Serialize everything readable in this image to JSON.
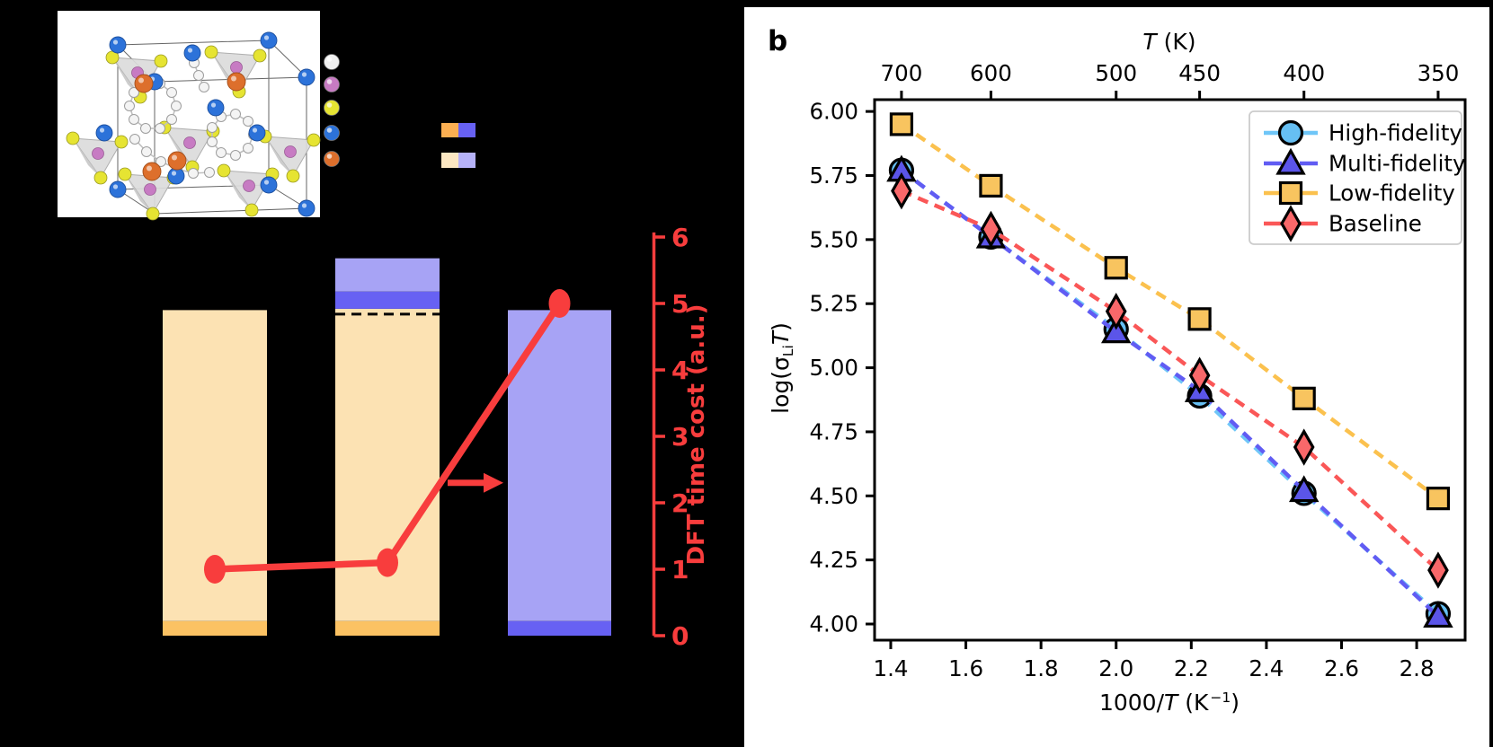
{
  "colors": {
    "accent_red": "#F83D3D",
    "bar_tan": "#FCE2B3",
    "bar_orange": "#FBC263",
    "bar_purple": "#A7A3F5",
    "bar_blue": "#6761F3",
    "swatch_orange": "#FBAF52",
    "swatch_blue": "#6761F3",
    "swatch_cream": "#FCE7C2",
    "swatch_purple": "#B6B2F8",
    "atom_white": "#F0F0F0",
    "atom_pink": "#C77BC3",
    "atom_yellow": "#E6E432",
    "atom_blue": "#2C72D9",
    "atom_orange": "#DD6F2C"
  },
  "panel_a": {
    "atom_legend": {
      "sphere_color_keys": [
        "atom_white",
        "atom_pink",
        "atom_yellow",
        "atom_blue",
        "atom_orange"
      ]
    },
    "swatch_pairs": [
      [
        "swatch_orange",
        "swatch_blue"
      ],
      [
        "swatch_cream",
        "swatch_purple"
      ]
    ],
    "cost_axis": {
      "label": "DFT time cost (a.u.)",
      "tick_labels": [
        "0",
        "1",
        "2",
        "3",
        "4",
        "5",
        "6"
      ]
    }
  },
  "panel_b": {
    "label": "b"
  },
  "chart_data": [
    {
      "type": "bar",
      "panel": "a",
      "right_axis": {
        "label": "DFT time cost (a.u.)",
        "ticks": [
          0,
          1,
          2,
          3,
          4,
          5,
          6
        ],
        "range": [
          0,
          6.07
        ],
        "color_key": "accent_red"
      },
      "bars": [
        {
          "segments": [
            [
              "bar_orange",
              0,
              0.22
            ],
            [
              "bar_tan",
              0.22,
              4.9
            ]
          ]
        },
        {
          "segments": [
            [
              "bar_orange",
              0,
              0.22
            ],
            [
              "bar_tan",
              0.22,
              4.92
            ],
            [
              "bar_blue",
              4.92,
              5.18
            ],
            [
              "bar_purple",
              5.18,
              5.68
            ]
          ],
          "dashed_line_at": 4.84
        },
        {
          "segments": [
            [
              "bar_blue",
              0,
              0.22
            ],
            [
              "bar_purple",
              0.22,
              4.9
            ]
          ]
        }
      ],
      "line_series": {
        "color_key": "accent_red",
        "values": [
          1.0,
          1.1,
          5.0
        ]
      },
      "arrow": {
        "at_value": 2.3
      }
    },
    {
      "type": "scatter",
      "panel": "b",
      "x": [
        1.4286,
        1.6667,
        2.0,
        2.2222,
        2.5,
        2.8571
      ],
      "series": [
        {
          "name": "High-fidelity",
          "marker": "circle",
          "marker_fill": "#66BFF3",
          "line_color": "#6FC6F8",
          "values": [
            5.77,
            5.51,
            5.15,
            4.89,
            4.51,
            4.04
          ]
        },
        {
          "name": "Multi-fidelity",
          "marker": "triangle",
          "marker_fill": "#5B55E9",
          "line_color": "#615CF3",
          "values": [
            5.77,
            5.51,
            5.14,
            4.91,
            4.52,
            4.03
          ]
        },
        {
          "name": "Low-fidelity",
          "marker": "square",
          "marker_fill": "#F8C45F",
          "line_color": "#FBC14E",
          "values": [
            5.95,
            5.71,
            5.39,
            5.19,
            4.88,
            4.49
          ]
        },
        {
          "name": "Baseline",
          "marker": "diamond",
          "marker_fill": "#F9686A",
          "line_color": "#FA5757",
          "values": [
            5.69,
            5.54,
            5.22,
            4.97,
            4.69,
            4.21
          ]
        }
      ],
      "xlim": [
        1.357,
        2.929
      ],
      "ylim": [
        3.937,
        6.046
      ],
      "grid": false,
      "legend_position": "upper right",
      "xtick_values": [
        1.4,
        1.6,
        1.8,
        2.0,
        2.2,
        2.4,
        2.6,
        2.8
      ],
      "xtick_labels": [
        "1.4",
        "1.6",
        "1.8",
        "2.0",
        "2.2",
        "2.4",
        "2.6",
        "2.8"
      ],
      "ytick_values": [
        6.0,
        5.75,
        5.5,
        5.25,
        5.0,
        4.75,
        4.5,
        4.25,
        4.0
      ],
      "ytick_labels": [
        "6.00",
        "5.75",
        "5.50",
        "5.25",
        "5.00",
        "4.75",
        "4.50",
        "4.25",
        "4.00"
      ],
      "top_axis": {
        "tick_values": [
          700,
          600,
          500,
          450,
          400,
          350
        ],
        "tick_labels": [
          "700",
          "600",
          "500",
          "450",
          "400",
          "350"
        ],
        "label_parts": [
          {
            "t": "T",
            "i": true
          },
          {
            "t": " (K)"
          }
        ]
      },
      "xlabel_parts": [
        {
          "t": "1000/"
        },
        {
          "t": "T",
          "i": true
        },
        {
          "t": " (K"
        },
        {
          "t": "−1",
          "sup": true
        },
        {
          "t": ")"
        }
      ],
      "ylabel_parts": [
        {
          "t": "log("
        },
        {
          "t": "σ"
        },
        {
          "t": "Li",
          "sub": true
        },
        {
          "t": "T",
          "i": true
        },
        {
          "t": ")"
        }
      ]
    }
  ]
}
